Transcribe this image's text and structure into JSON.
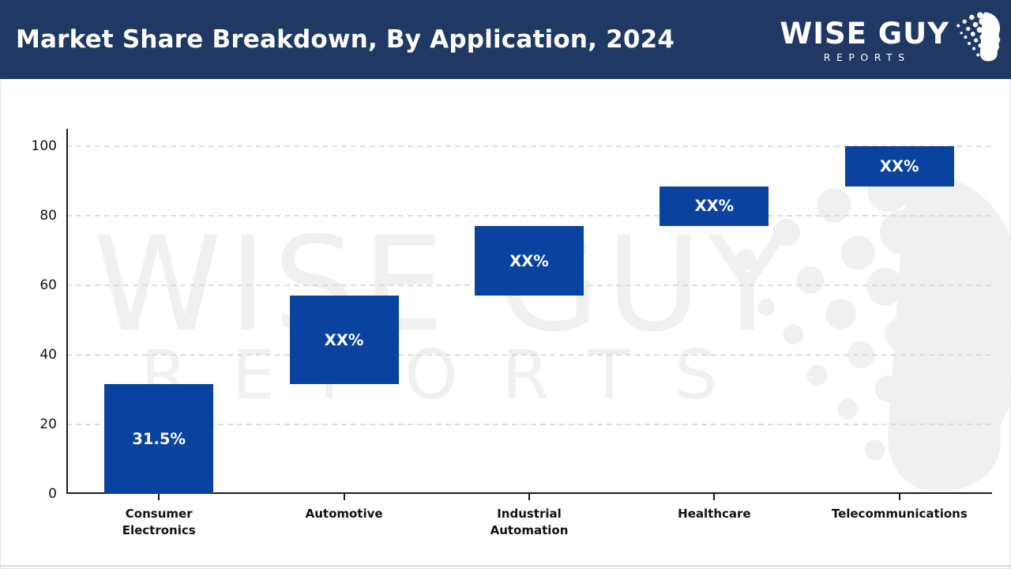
{
  "header": {
    "title": "Market Share Breakdown, By Application, 2024",
    "logo": {
      "name": "WISE GUY",
      "tagline": "REPORTS"
    }
  },
  "watermark": {
    "line1": "WISE GUY",
    "line2": "REPORTS"
  },
  "chart_data": {
    "type": "bar",
    "subtype": "waterfall",
    "title": "Market Share Breakdown, By Application, 2024",
    "categories": [
      "Consumer\nElectronics",
      "Automotive",
      "Industrial\nAutomation",
      "Healthcare",
      "Telecommunications"
    ],
    "segments": [
      {
        "category": "Consumer Electronics",
        "start": 0,
        "end": 31.5,
        "label": "31.5%"
      },
      {
        "category": "Automotive",
        "start": 31.5,
        "end": 57,
        "label": "XX%"
      },
      {
        "category": "Industrial Automation",
        "start": 57,
        "end": 77,
        "label": "XX%"
      },
      {
        "category": "Healthcare",
        "start": 77,
        "end": 88.5,
        "label": "XX%"
      },
      {
        "category": "Telecommunications",
        "start": 88.5,
        "end": 100,
        "label": "XX%"
      }
    ],
    "yticks": [
      0,
      20,
      40,
      60,
      80,
      100
    ],
    "ylim": [
      0,
      105
    ],
    "grid": "horizontal-dashed",
    "legend": null,
    "xlabel": "",
    "ylabel": ""
  },
  "colors": {
    "header_bg": "#203864",
    "bar": "#0a42a0",
    "bar_label": "#ffffff",
    "axis": "#1a1a1a",
    "gridline": "#dcdcdc",
    "watermark": "#f0f0f0",
    "page_bg": "#ffffff"
  }
}
